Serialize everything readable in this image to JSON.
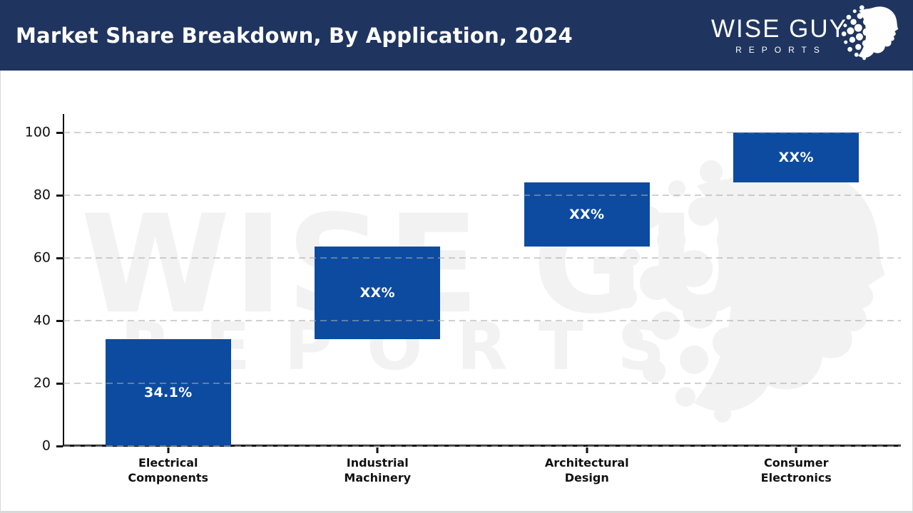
{
  "header": {
    "title": "Market Share Breakdown, By Application, 2024",
    "logo": {
      "line1": "WISE GUY",
      "line2": "REPORTS",
      "icon": "wiseguy-face-profile-icon"
    }
  },
  "watermark": {
    "line1": "WISE GUY",
    "line2": "REPORTS",
    "icon": "wiseguy-face-profile-icon"
  },
  "colors": {
    "header_bg": "#1f3560",
    "bar": "#0c4ba0",
    "bar_label": "#ffffff",
    "axis": "#111111",
    "gridline": "#c9c9c9",
    "watermark": "#f2f2f3",
    "canvas_border": "#d9d9d9"
  },
  "chart_data": {
    "type": "bar",
    "variant": "floating-waterfall-segments",
    "title": "Market Share Breakdown, By Application, 2024",
    "categories": [
      "Electrical Components",
      "Industrial Machinery",
      "Architectural Design",
      "Consumer Electronics"
    ],
    "segments": [
      {
        "category": "Electrical Components",
        "start": 0,
        "end": 34.1,
        "label": "34.1%"
      },
      {
        "category": "Industrial Machinery",
        "start": 34.1,
        "end": 63.6,
        "label": "XX%"
      },
      {
        "category": "Architectural Design",
        "start": 63.6,
        "end": 84.1,
        "label": "XX%"
      },
      {
        "category": "Consumer Electronics",
        "start": 84.1,
        "end": 100,
        "label": "XX%"
      }
    ],
    "yticks": [
      0,
      20,
      40,
      60,
      80,
      100
    ],
    "ylim": [
      0,
      106
    ],
    "xlabel": "",
    "ylabel": "",
    "grid": "horizontal-dashed-over-bars",
    "legend": "none",
    "bar_width_fraction": 0.6
  }
}
